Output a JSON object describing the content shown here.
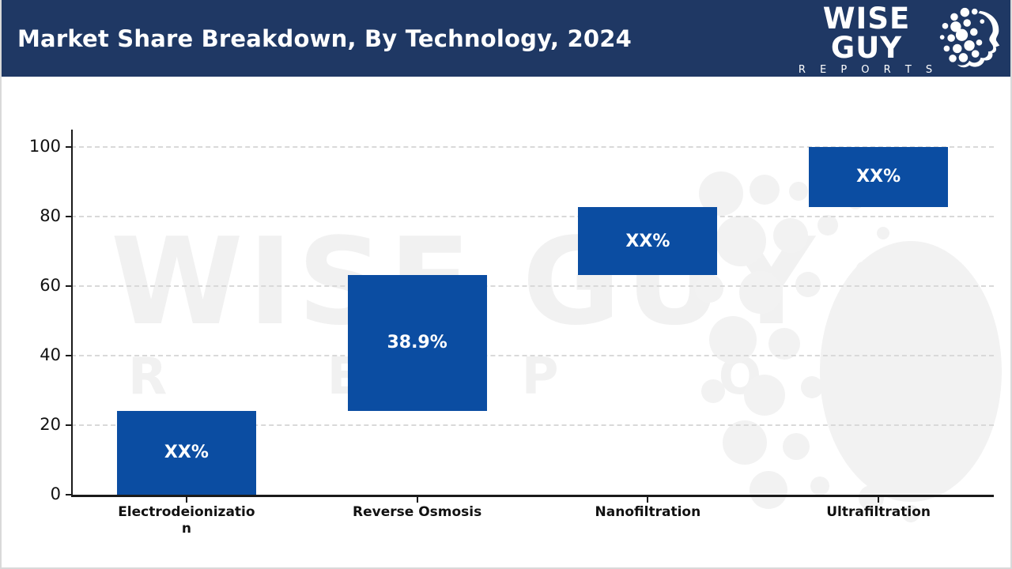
{
  "header": {
    "title": "Market Share Breakdown, By Technology, 2024",
    "logo": {
      "main": "WISE GUY",
      "sub": "R E P O R T S"
    }
  },
  "watermark": {
    "main": "WISE GUY",
    "sub": "R E P O R T S"
  },
  "colors": {
    "header_bg": "#1f3864",
    "bar_fill": "#0b4da2",
    "bar_label_text": "#ffffff",
    "grid": "#d9d9d9",
    "axis": "#1a1a1a",
    "watermark": "#f1f1f1"
  },
  "chart_data": {
    "type": "bar",
    "variant": "floating-segment-waterfall",
    "title": "Market Share Breakdown, By Technology, 2024",
    "xlabel": "",
    "ylabel": "",
    "ylim": [
      0,
      100
    ],
    "yticks": [
      0,
      20,
      40,
      60,
      80,
      100
    ],
    "grid": "dashed-horizontal",
    "legend": "none",
    "categories": [
      "Electrodeionization",
      "Reverse Osmosis",
      "Nanofiltration",
      "Ultrafiltration"
    ],
    "category_display": [
      "Electrodeionizatio\nn",
      "Reverse Osmosis",
      "Nanofiltration",
      "Ultrafiltration"
    ],
    "segments": [
      {
        "category": "Electrodeionization",
        "start": 0,
        "end": 24.2,
        "label": "XX%"
      },
      {
        "category": "Reverse Osmosis",
        "start": 24.2,
        "end": 63.1,
        "label": "38.9%",
        "value": 38.9
      },
      {
        "category": "Nanofiltration",
        "start": 63.1,
        "end": 82.8,
        "label": "XX%"
      },
      {
        "category": "Ultrafiltration",
        "start": 82.8,
        "end": 100,
        "label": "XX%"
      }
    ]
  }
}
